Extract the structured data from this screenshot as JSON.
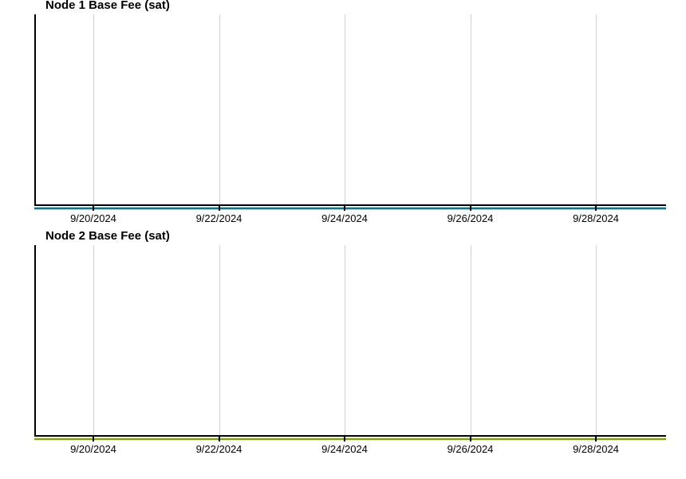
{
  "page": {
    "background_color": "#ffffff",
    "axis_color": "#000000",
    "gridline_color": "#d2d2d2",
    "tick_label_color": "#000000"
  },
  "chart_data": [
    {
      "type": "line",
      "title": "Node 1 Base Fee (sat)",
      "xlabel": "",
      "ylabel": "",
      "x_ticks": [
        "9/20/2024",
        "9/22/2024",
        "9/24/2024",
        "9/26/2024",
        "9/28/2024"
      ],
      "x_range_estimate": [
        "9/19/2024",
        "9/29/2024"
      ],
      "y_ticks": [],
      "grid": "vertical-only",
      "legend": "none",
      "series": [
        {
          "name": "Node 1 base fee",
          "x": [
            "9/20/2024",
            "9/22/2024",
            "9/24/2024",
            "9/26/2024",
            "9/28/2024"
          ],
          "values": [
            0,
            0,
            0,
            0,
            0
          ],
          "flat_at_zero": true,
          "color": "#19707e",
          "halo_color": "#a9d6dc"
        }
      ]
    },
    {
      "type": "line",
      "title": "Node 2 Base Fee (sat)",
      "xlabel": "",
      "ylabel": "",
      "x_ticks": [
        "9/20/2024",
        "9/22/2024",
        "9/24/2024",
        "9/26/2024",
        "9/28/2024"
      ],
      "x_range_estimate": [
        "9/19/2024",
        "9/29/2024"
      ],
      "y_ticks": [],
      "grid": "vertical-only",
      "legend": "none",
      "series": [
        {
          "name": "Node 2 base fee",
          "x": [
            "9/20/2024",
            "9/22/2024",
            "9/24/2024",
            "9/26/2024",
            "9/28/2024"
          ],
          "values": [
            0,
            0,
            0,
            0,
            0
          ],
          "flat_at_zero": true,
          "color": "#84a016",
          "halo_color": "#dcedb2"
        }
      ]
    }
  ]
}
